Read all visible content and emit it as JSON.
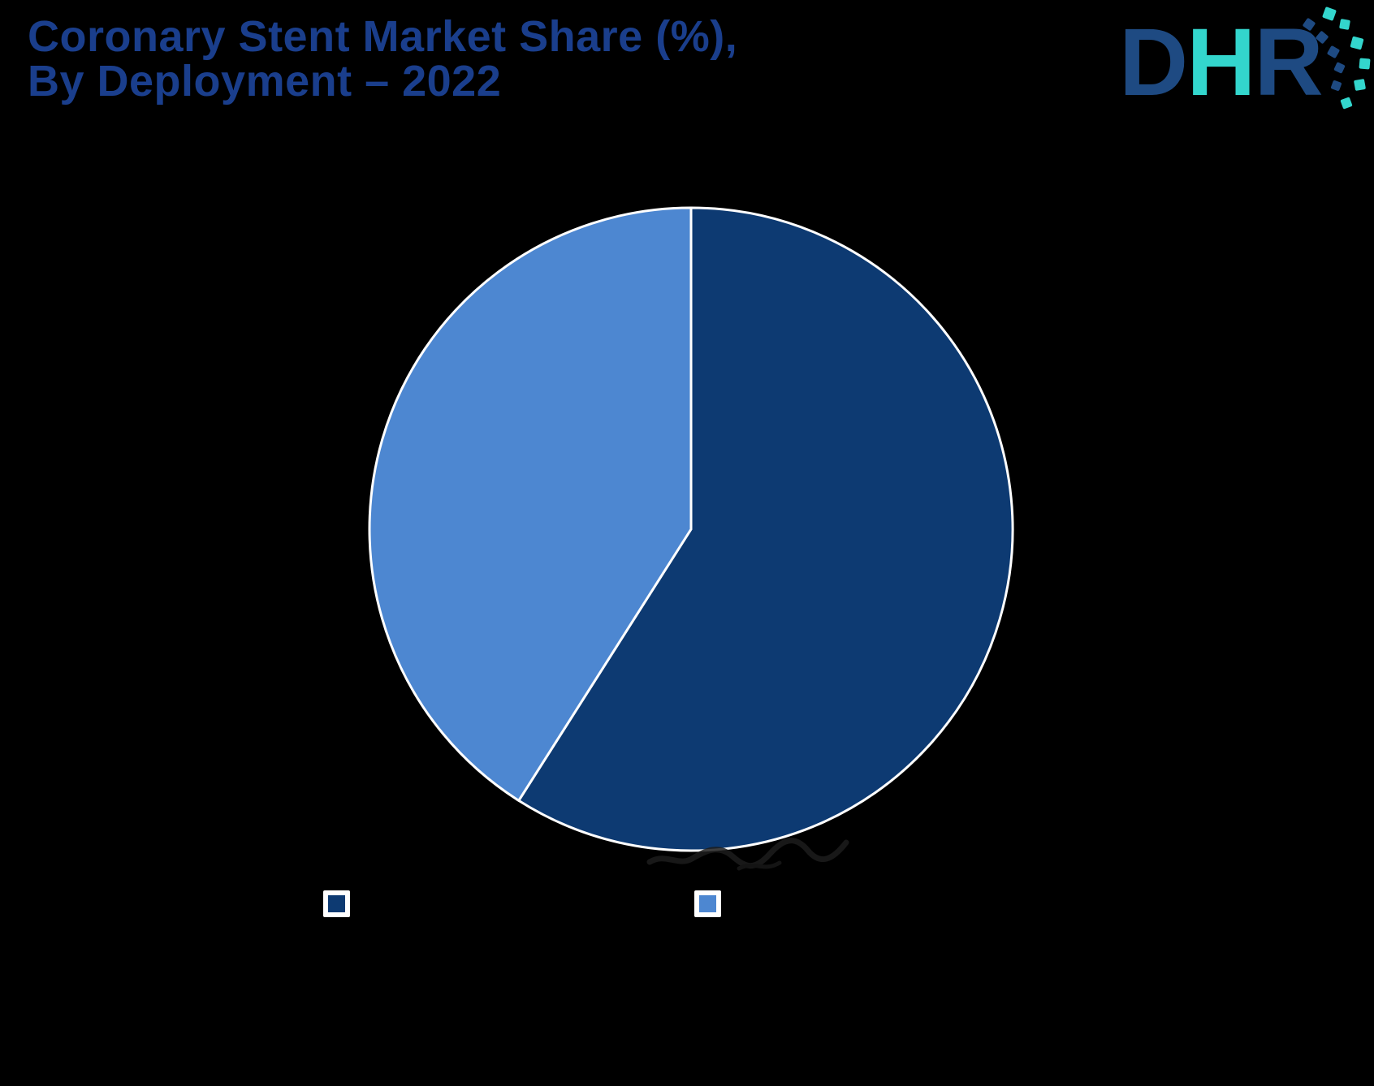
{
  "background_color": "#000000",
  "header": {
    "title_line1": "Coronary Stent Market Share (%),",
    "title_line2": "By Deployment – 2022",
    "title_color": "#1a3e8c"
  },
  "logo": {
    "letter_d": "D",
    "letter_h": "H",
    "letter_r": "R",
    "navy_color": "#1e4a82",
    "teal_color": "#33d6cd"
  },
  "chart_data": {
    "type": "pie",
    "title": "Coronary Stent Market Share (%), By Deployment – 2022",
    "start_angle_deg": 0,
    "direction": "clockwise",
    "segments": [
      {
        "id": "segment-1",
        "label": "",
        "value_pct": 59,
        "color": "#0d3a72"
      },
      {
        "id": "segment-2",
        "label": "",
        "value_pct": 41,
        "color": "#4d87d1"
      }
    ],
    "slice_border_color": "#ffffff",
    "slice_border_width": 3,
    "legend": {
      "position": "bottom",
      "labels_visible": false,
      "swatch_background": "#ffffff"
    }
  }
}
